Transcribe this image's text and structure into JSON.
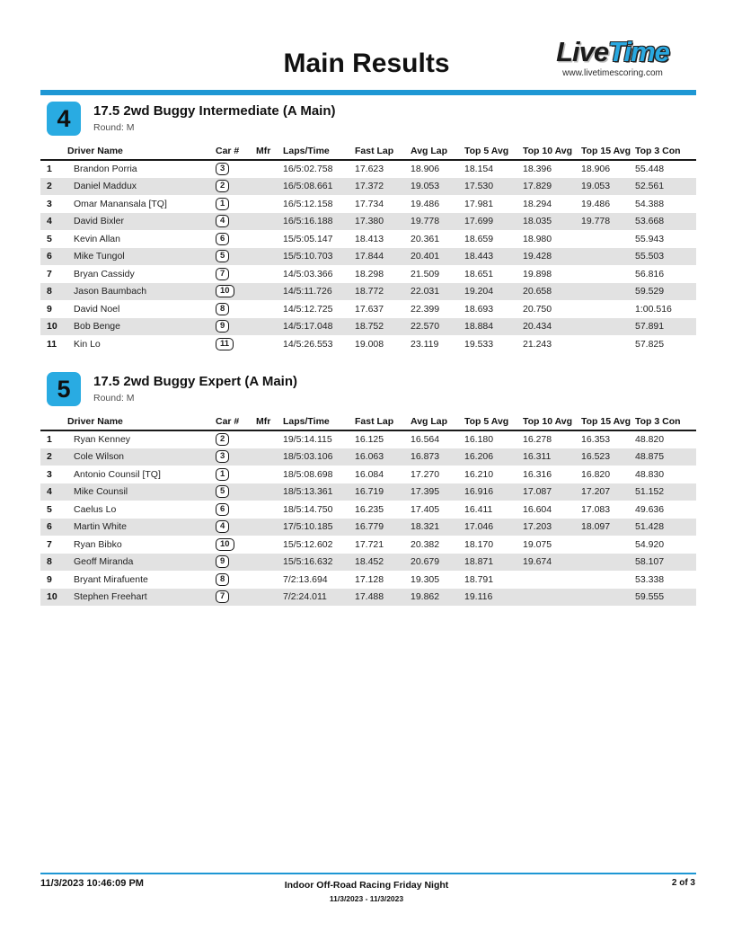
{
  "page": {
    "title": "Main Results"
  },
  "logo": {
    "live": "Live",
    "time": "Time",
    "url": "www.livetimescoring.com"
  },
  "colors": {
    "accent": "#1e97d4",
    "badge_blue": "#29abe2",
    "row_alt": "#e2e2e2",
    "logo_cyan": "#29a8e0"
  },
  "table_columns": [
    "Driver Name",
    "Car #",
    "Mfr",
    "Laps/Time",
    "Fast Lap",
    "Avg Lap",
    "Top 5 Avg",
    "Top 10 Avg",
    "Top 15 Avg",
    "Top 3 Con"
  ],
  "sections": [
    {
      "number": "4",
      "title": "17.5 2wd Buggy Intermediate (A Main)",
      "round": "Round: M",
      "rows": [
        {
          "pos": "1",
          "driver": "Brandon Porria",
          "car": "3",
          "mfr": "",
          "laps_time": "16/5:02.758",
          "fast_lap": "17.623",
          "avg_lap": "18.906",
          "top5": "18.154",
          "top10": "18.396",
          "top15": "18.906",
          "top3con": "55.448"
        },
        {
          "pos": "2",
          "driver": "Daniel Maddux",
          "car": "2",
          "mfr": "",
          "laps_time": "16/5:08.661",
          "fast_lap": "17.372",
          "avg_lap": "19.053",
          "top5": "17.530",
          "top10": "17.829",
          "top15": "19.053",
          "top3con": "52.561"
        },
        {
          "pos": "3",
          "driver": "Omar Manansala [TQ]",
          "car": "1",
          "mfr": "",
          "laps_time": "16/5:12.158",
          "fast_lap": "17.734",
          "avg_lap": "19.486",
          "top5": "17.981",
          "top10": "18.294",
          "top15": "19.486",
          "top3con": "54.388"
        },
        {
          "pos": "4",
          "driver": "David Bixler",
          "car": "4",
          "mfr": "",
          "laps_time": "16/5:16.188",
          "fast_lap": "17.380",
          "avg_lap": "19.778",
          "top5": "17.699",
          "top10": "18.035",
          "top15": "19.778",
          "top3con": "53.668"
        },
        {
          "pos": "5",
          "driver": "Kevin Allan",
          "car": "6",
          "mfr": "",
          "laps_time": "15/5:05.147",
          "fast_lap": "18.413",
          "avg_lap": "20.361",
          "top5": "18.659",
          "top10": "18.980",
          "top15": "",
          "top3con": "55.943"
        },
        {
          "pos": "6",
          "driver": "Mike Tungol",
          "car": "5",
          "mfr": "",
          "laps_time": "15/5:10.703",
          "fast_lap": "17.844",
          "avg_lap": "20.401",
          "top5": "18.443",
          "top10": "19.428",
          "top15": "",
          "top3con": "55.503"
        },
        {
          "pos": "7",
          "driver": "Bryan Cassidy",
          "car": "7",
          "mfr": "",
          "laps_time": "14/5:03.366",
          "fast_lap": "18.298",
          "avg_lap": "21.509",
          "top5": "18.651",
          "top10": "19.898",
          "top15": "",
          "top3con": "56.816"
        },
        {
          "pos": "8",
          "driver": "Jason Baumbach",
          "car": "10",
          "mfr": "",
          "laps_time": "14/5:11.726",
          "fast_lap": "18.772",
          "avg_lap": "22.031",
          "top5": "19.204",
          "top10": "20.658",
          "top15": "",
          "top3con": "59.529"
        },
        {
          "pos": "9",
          "driver": "David Noel",
          "car": "8",
          "mfr": "",
          "laps_time": "14/5:12.725",
          "fast_lap": "17.637",
          "avg_lap": "22.399",
          "top5": "18.693",
          "top10": "20.750",
          "top15": "",
          "top3con": "1:00.516"
        },
        {
          "pos": "10",
          "driver": "Bob Benge",
          "car": "9",
          "mfr": "",
          "laps_time": "14/5:17.048",
          "fast_lap": "18.752",
          "avg_lap": "22.570",
          "top5": "18.884",
          "top10": "20.434",
          "top15": "",
          "top3con": "57.891"
        },
        {
          "pos": "11",
          "driver": "Kin Lo",
          "car": "11",
          "mfr": "",
          "laps_time": "14/5:26.553",
          "fast_lap": "19.008",
          "avg_lap": "23.119",
          "top5": "19.533",
          "top10": "21.243",
          "top15": "",
          "top3con": "57.825"
        }
      ]
    },
    {
      "number": "5",
      "title": "17.5 2wd Buggy Expert (A Main)",
      "round": "Round: M",
      "rows": [
        {
          "pos": "1",
          "driver": "Ryan Kenney",
          "car": "2",
          "mfr": "",
          "laps_time": "19/5:14.115",
          "fast_lap": "16.125",
          "avg_lap": "16.564",
          "top5": "16.180",
          "top10": "16.278",
          "top15": "16.353",
          "top3con": "48.820"
        },
        {
          "pos": "2",
          "driver": "Cole Wilson",
          "car": "3",
          "mfr": "",
          "laps_time": "18/5:03.106",
          "fast_lap": "16.063",
          "avg_lap": "16.873",
          "top5": "16.206",
          "top10": "16.311",
          "top15": "16.523",
          "top3con": "48.875"
        },
        {
          "pos": "3",
          "driver": "Antonio Counsil [TQ]",
          "car": "1",
          "mfr": "",
          "laps_time": "18/5:08.698",
          "fast_lap": "16.084",
          "avg_lap": "17.270",
          "top5": "16.210",
          "top10": "16.316",
          "top15": "16.820",
          "top3con": "48.830"
        },
        {
          "pos": "4",
          "driver": "Mike Counsil",
          "car": "5",
          "mfr": "",
          "laps_time": "18/5:13.361",
          "fast_lap": "16.719",
          "avg_lap": "17.395",
          "top5": "16.916",
          "top10": "17.087",
          "top15": "17.207",
          "top3con": "51.152"
        },
        {
          "pos": "5",
          "driver": "Caelus Lo",
          "car": "6",
          "mfr": "",
          "laps_time": "18/5:14.750",
          "fast_lap": "16.235",
          "avg_lap": "17.405",
          "top5": "16.411",
          "top10": "16.604",
          "top15": "17.083",
          "top3con": "49.636"
        },
        {
          "pos": "6",
          "driver": "Martin White",
          "car": "4",
          "mfr": "",
          "laps_time": "17/5:10.185",
          "fast_lap": "16.779",
          "avg_lap": "18.321",
          "top5": "17.046",
          "top10": "17.203",
          "top15": "18.097",
          "top3con": "51.428"
        },
        {
          "pos": "7",
          "driver": "Ryan Bibko",
          "car": "10",
          "mfr": "",
          "laps_time": "15/5:12.602",
          "fast_lap": "17.721",
          "avg_lap": "20.382",
          "top5": "18.170",
          "top10": "19.075",
          "top15": "",
          "top3con": "54.920"
        },
        {
          "pos": "8",
          "driver": "Geoff Miranda",
          "car": "9",
          "mfr": "",
          "laps_time": "15/5:16.632",
          "fast_lap": "18.452",
          "avg_lap": "20.679",
          "top5": "18.871",
          "top10": "19.674",
          "top15": "",
          "top3con": "58.107"
        },
        {
          "pos": "9",
          "driver": "Bryant Mirafuente",
          "car": "8",
          "mfr": "",
          "laps_time": "7/2:13.694",
          "fast_lap": "17.128",
          "avg_lap": "19.305",
          "top5": "18.791",
          "top10": "",
          "top15": "",
          "top3con": "53.338"
        },
        {
          "pos": "10",
          "driver": "Stephen Freehart",
          "car": "7",
          "mfr": "",
          "laps_time": "7/2:24.011",
          "fast_lap": "17.488",
          "avg_lap": "19.862",
          "top5": "19.116",
          "top10": "",
          "top15": "",
          "top3con": "59.555"
        }
      ]
    }
  ],
  "footer": {
    "timestamp": "11/3/2023 10:46:09 PM",
    "event": "Indoor Off-Road Racing Friday Night",
    "dates": "11/3/2023 - 11/3/2023",
    "page": "2 of 3"
  }
}
